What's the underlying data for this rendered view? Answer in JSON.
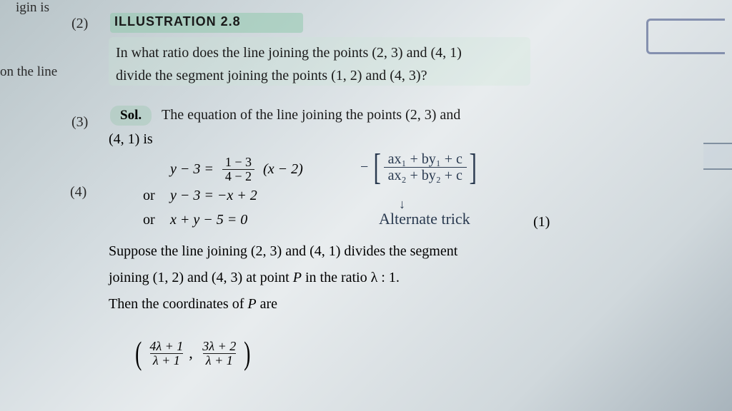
{
  "margins": {
    "top_fragment": "igin is",
    "side_fragment": "on the line"
  },
  "numbers": {
    "n2": "(2)",
    "n3": "(3)",
    "n4": "(4)",
    "eq1": "(1)"
  },
  "illustration": {
    "label": "ILLUSTRATION 2.8",
    "highlight_color": "#a8d8bc"
  },
  "question": {
    "line1": "In what ratio does the line joining the points (2, 3) and (4, 1)",
    "line2": "divide the segment joining the points (1, 2) and (4, 3)?"
  },
  "solution": {
    "label": "Sol.",
    "intro": "The equation of the line joining the points (2, 3) and",
    "cont": "(4, 1) is"
  },
  "equations": {
    "eq1_lhs": "y − 3 =",
    "eq1_frac_num": "1 − 3",
    "eq1_frac_den": "4 − 2",
    "eq1_rhs": "(x − 2)",
    "or": "or",
    "eq2": "y − 3 = −x + 2",
    "eq3": "x + y − 5 = 0"
  },
  "handwriting": {
    "minus": "−",
    "frac_num": "ax₁ + by₁ + c",
    "frac_den": "ax₂ + by₂ + c",
    "arrow": "↓",
    "label": "Alternate trick",
    "ink_color": "#2a3a50"
  },
  "paragraph": {
    "l1": "Suppose the line joining (2, 3) and (4, 1) divides the segment",
    "l2_a": "joining (1, 2) and (4, 3) at point ",
    "l2_P": "P",
    "l2_b": " in the ratio λ : 1.",
    "l3_a": "Then the coordinates of ",
    "l3_P": "P",
    "l3_b": " are"
  },
  "coord": {
    "n1": "4λ + 1",
    "d1": "λ + 1",
    "n2": "3λ + 2",
    "d2": "λ + 1"
  },
  "colors": {
    "page_bg_start": "#b8c4c8",
    "page_bg_end": "#a8b4bc",
    "text": "#1a1a1a",
    "highlight": "#a8d8bc",
    "blue_pen": "#4a5a8a"
  }
}
